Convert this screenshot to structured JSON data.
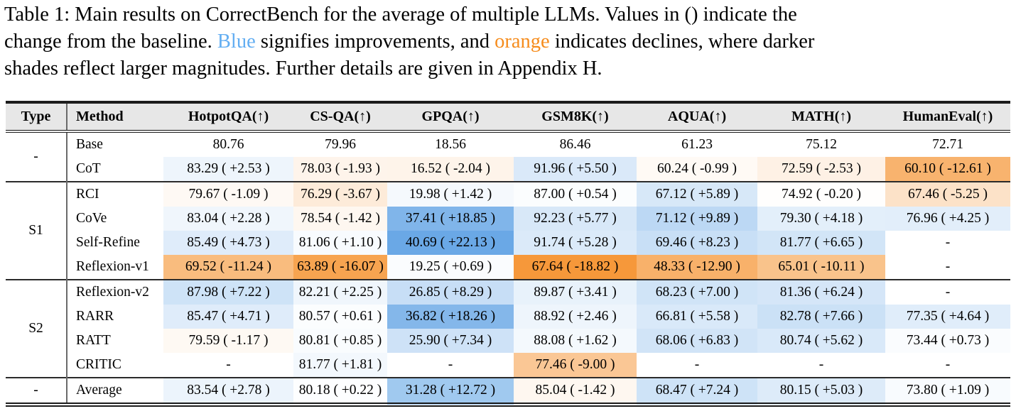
{
  "caption": {
    "lines": [
      [
        {
          "text": "Table 1: Main results on CorrectBench for the average of multiple LLMs. Values in () indicate the"
        }
      ],
      [
        {
          "text": "change from the baseline. "
        },
        {
          "text": "Blue",
          "color": "#63AEF2"
        },
        {
          "text": " signifies improvements, and "
        },
        {
          "text": "orange",
          "color": "#F68C1C"
        },
        {
          "text": " indicates declines, where darker"
        }
      ],
      [
        {
          "text": "shades reflect larger magnitudes. Further details are given in Appendix H."
        }
      ]
    ]
  },
  "legend_colors": {
    "improve_max": "#6AA8E6",
    "decline_max": "#F6983A",
    "header_bg": "#E7E7E7"
  },
  "table": {
    "columns": [
      "Type",
      "Method",
      "HotpotQA(↑)",
      "CS-QA(↑)",
      "GPQA(↑)",
      "GSM8K(↑)",
      "AQUA(↑)",
      "MATH(↑)",
      "HumanEval(↑)"
    ],
    "groups": [
      {
        "type": "-",
        "rows": [
          {
            "method": "Base",
            "cells": [
              {
                "text": "80.76"
              },
              {
                "text": "79.96"
              },
              {
                "text": "18.56"
              },
              {
                "text": "86.46"
              },
              {
                "text": "61.23"
              },
              {
                "text": "75.12"
              },
              {
                "text": "72.71"
              }
            ]
          },
          {
            "method": "CoT",
            "cells": [
              {
                "text": "83.29 ( +2.53 )",
                "bg": "#EEF5FC"
              },
              {
                "text": "78.03 ( -1.93 )",
                "bg": "#FEF4EB"
              },
              {
                "text": "16.52 ( -2.04 )",
                "bg": "#FEF4EA"
              },
              {
                "text": "91.96 ( +5.50 )",
                "bg": "#DAE9F9"
              },
              {
                "text": "60.24 ( -0.99 )",
                "bg": "#FFFAF5"
              },
              {
                "text": "72.59 ( -2.53 )",
                "bg": "#FEF1E5"
              },
              {
                "text": "60.10 ( -12.61 )",
                "bg": "#F8B36E"
              }
            ]
          }
        ]
      },
      {
        "type": "S1",
        "rows": [
          {
            "method": "RCI",
            "cells": [
              {
                "text": "79.67 ( -1.09 )",
                "bg": "#FEF9F4"
              },
              {
                "text": "76.29 ( -3.67 )",
                "bg": "#FDEBD9"
              },
              {
                "text": "19.98 ( +1.42 )",
                "bg": "#F5F9FD"
              },
              {
                "text": "87.00 ( +0.54 )",
                "bg": "#FBFDFE"
              },
              {
                "text": "67.12 ( +5.89 )",
                "bg": "#D7E8F8"
              },
              {
                "text": "74.92 ( -0.20 )",
                "bg": "#FFFEFD"
              },
              {
                "text": "67.46 ( -5.25 )",
                "bg": "#FCE2C8"
              }
            ]
          },
          {
            "method": "CoVe",
            "cells": [
              {
                "text": "83.04 ( +2.28 )",
                "bg": "#F0F6FC"
              },
              {
                "text": "78.54 ( -1.42 )",
                "bg": "#FEF7F0"
              },
              {
                "text": "37.41 ( +18.85 )",
                "bg": "#80B5EA"
              },
              {
                "text": "92.23 ( +5.77 )",
                "bg": "#D8E8F8"
              },
              {
                "text": "71.12 ( +9.89 )",
                "bg": "#BCD8F4"
              },
              {
                "text": "79.30 ( +4.18 )",
                "bg": "#E3EFFA"
              },
              {
                "text": "76.96 ( +4.25 )",
                "bg": "#E2EEFA"
              }
            ]
          },
          {
            "method": "Self-Refine",
            "cells": [
              {
                "text": "85.49 ( +4.73 )",
                "bg": "#DFECFA"
              },
              {
                "text": "81.06 ( +1.10 )",
                "bg": "#F8FBFE"
              },
              {
                "text": "40.69 ( +22.13 )",
                "bg": "#6AA8E6"
              },
              {
                "text": "91.74 ( +5.28 )",
                "bg": "#DBEAF9"
              },
              {
                "text": "69.46 ( +8.23 )",
                "bg": "#C8DFF6"
              },
              {
                "text": "81.77 ( +6.65 )",
                "bg": "#D2E5F7"
              },
              {
                "text": "-"
              }
            ]
          },
          {
            "method": "Reflexion-v1",
            "cells": [
              {
                "text": "69.52 ( -11.24 )",
                "bg": "#F9BC7E"
              },
              {
                "text": "63.89 ( -16.07 )",
                "bg": "#F7A450"
              },
              {
                "text": "19.25 ( +0.69 )",
                "bg": "#FAFCFE"
              },
              {
                "text": "67.64 ( -18.82 )",
                "bg": "#F6983A"
              },
              {
                "text": "48.33 ( -12.90 )",
                "bg": "#F8B16A"
              },
              {
                "text": "65.01 ( -10.11 )",
                "bg": "#F9C38B"
              },
              {
                "text": "-"
              }
            ]
          }
        ]
      },
      {
        "type": "S2",
        "rows": [
          {
            "method": "Reflexion-v2",
            "cells": [
              {
                "text": "87.98 ( +7.22 )",
                "bg": "#CEE3F7"
              },
              {
                "text": "82.21 ( +2.25 )",
                "bg": "#F0F6FC"
              },
              {
                "text": "26.85 ( +8.29 )",
                "bg": "#C7DEF6"
              },
              {
                "text": "89.87 ( +3.41 )",
                "bg": "#E8F2FB"
              },
              {
                "text": "68.23 ( +7.00 )",
                "bg": "#D0E4F7"
              },
              {
                "text": "81.36 ( +6.24 )",
                "bg": "#D5E6F8"
              },
              {
                "text": "-"
              }
            ]
          },
          {
            "method": "RARR",
            "cells": [
              {
                "text": "85.47 ( +4.71 )",
                "bg": "#DFECFA"
              },
              {
                "text": "80.57 ( +0.61 )",
                "bg": "#FBFDFE"
              },
              {
                "text": "36.82 ( +18.26 )",
                "bg": "#84B7EA"
              },
              {
                "text": "88.92 ( +2.46 )",
                "bg": "#EEF5FC"
              },
              {
                "text": "66.81 ( +5.58 )",
                "bg": "#D9E9F9"
              },
              {
                "text": "82.78 ( +7.66 )",
                "bg": "#CBE1F6"
              },
              {
                "text": "77.35 ( +4.64 )",
                "bg": "#E0EDFA"
              }
            ]
          },
          {
            "method": "RATT",
            "cells": [
              {
                "text": "79.59 ( -1.17 )",
                "bg": "#FEF9F3"
              },
              {
                "text": "80.81 ( +0.85 )",
                "bg": "#F9FCFE"
              },
              {
                "text": "25.90 ( +7.34 )",
                "bg": "#CEE2F7"
              },
              {
                "text": "88.08 ( +1.62 )",
                "bg": "#F4F9FD"
              },
              {
                "text": "68.06 ( +6.83 )",
                "bg": "#D1E4F7"
              },
              {
                "text": "80.74 ( +5.62 )",
                "bg": "#D9E9F9"
              },
              {
                "text": "73.44 ( +0.73 )",
                "bg": "#FAFCFE"
              }
            ]
          },
          {
            "method": "CRITIC",
            "cells": [
              {
                "text": "-"
              },
              {
                "text": "81.77 ( +1.81 )",
                "bg": "#F3F8FD"
              },
              {
                "text": "-"
              },
              {
                "text": "77.46 ( -9.00 )",
                "bg": "#FAC795"
              },
              {
                "text": "-"
              },
              {
                "text": "-"
              },
              {
                "text": "-"
              }
            ]
          }
        ]
      },
      {
        "type": "-",
        "rows": [
          {
            "method": "Average",
            "cells": [
              {
                "text": "83.54 ( +2.78 )",
                "bg": "#ECF4FC"
              },
              {
                "text": "80.18 ( +0.22 )",
                "bg": "#FDFEFF"
              },
              {
                "text": "31.28 ( +12.72 )",
                "bg": "#A0C9EF"
              },
              {
                "text": "85.04 ( -1.42 )",
                "bg": "#FEF7F0"
              },
              {
                "text": "68.47 ( +7.24 )",
                "bg": "#CEE3F7"
              },
              {
                "text": "80.15 ( +5.03 )",
                "bg": "#DDEBF9"
              },
              {
                "text": "73.80 ( +1.09 )",
                "bg": "#F8FBFE"
              }
            ]
          }
        ]
      }
    ]
  }
}
